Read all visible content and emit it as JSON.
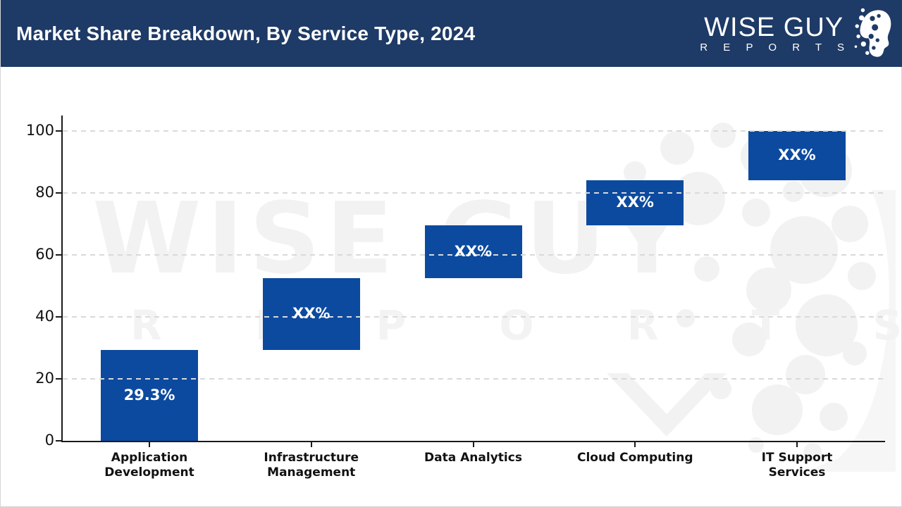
{
  "header": {
    "bg_color": "#1e3a66",
    "logo": {
      "line1": "WISE GUY",
      "line2": "R E P O R T S"
    }
  },
  "watermark": {
    "line1": "WISE GUY",
    "line2": "R E P O R T S"
  },
  "chart_data": {
    "type": "bar",
    "subtype": "waterfall",
    "title": "Market Share Breakdown, By Service Type, 2024",
    "categories": [
      "Application\nDevelopment",
      "Infrastructure\nManagement",
      "Data Analytics",
      "Cloud Computing",
      "IT Support\nServices"
    ],
    "segments": [
      {
        "category": "Application Development",
        "start": 0,
        "end": 29.3,
        "label": "29.3%"
      },
      {
        "category": "Infrastructure Management",
        "start": 29.3,
        "end": 52.4,
        "label": "XX%"
      },
      {
        "category": "Data Analytics",
        "start": 52.4,
        "end": 69.5,
        "label": "XX%"
      },
      {
        "category": "Cloud Computing",
        "start": 69.5,
        "end": 84.0,
        "label": "XX%"
      },
      {
        "category": "IT Support Services",
        "start": 84.0,
        "end": 100.0,
        "label": "XX%"
      }
    ],
    "xlabel": "",
    "ylabel": "",
    "ylim": [
      0,
      105
    ],
    "yticks": [
      0,
      20,
      40,
      60,
      80,
      100
    ],
    "grid": "horizontal-dashed",
    "legend": "none",
    "colors": {
      "bar": "#0c4aa0",
      "bar_label": "#ffffff",
      "grid": "#d9d9d9",
      "axis": "#1a1a1a",
      "tick_label": "#111111",
      "header_bg": "#1e3a66"
    }
  }
}
